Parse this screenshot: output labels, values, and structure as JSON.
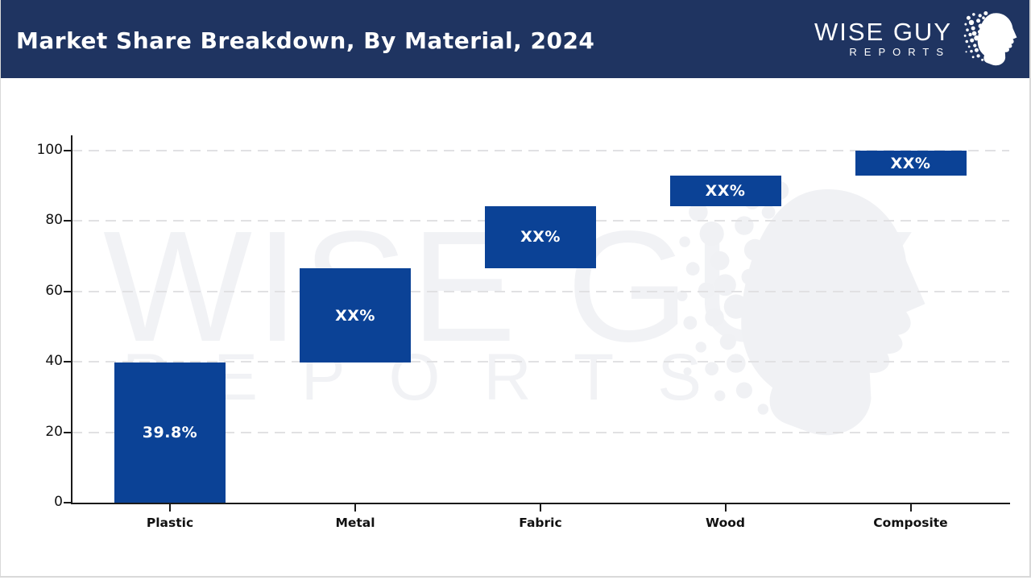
{
  "header": {
    "title": "Market Share Breakdown, By Material, 2024",
    "logo": {
      "line1": "WISE GUY",
      "line2": "REPORTS"
    }
  },
  "watermark": {
    "line1": "WISE GUY",
    "line2": "REPORTS"
  },
  "colors": {
    "header_navy": "#1f3461",
    "bar_blue": "#0b4296",
    "grid_gray": "#e1e1e3",
    "axis_black": "#1a1a1a",
    "watermark_gray": "#f1f2f5",
    "bar_label_white": "#ffffff"
  },
  "chart_data": {
    "type": "bar",
    "subtype": "waterfall",
    "title": "Market Share Breakdown, By Material, 2024",
    "categories": [
      "Plastic",
      "Metal",
      "Fabric",
      "Wood",
      "Composite"
    ],
    "segments": [
      {
        "category": "Plastic",
        "from": 0,
        "to": 39.8,
        "label": "39.8%"
      },
      {
        "category": "Metal",
        "from": 39.8,
        "to": 66.5,
        "label": "XX%"
      },
      {
        "category": "Fabric",
        "from": 66.5,
        "to": 84.3,
        "label": "XX%"
      },
      {
        "category": "Wood",
        "from": 84.3,
        "to": 92.9,
        "label": "XX%"
      },
      {
        "category": "Composite",
        "from": 92.9,
        "to": 100,
        "label": "XX%"
      }
    ],
    "xlabel": "",
    "ylabel": "",
    "yticks": [
      0,
      20,
      40,
      60,
      80,
      100
    ],
    "ylim": [
      0,
      104
    ],
    "grid": "horizontal-dashed",
    "legend": "none",
    "bar_color": "#0b4296"
  }
}
